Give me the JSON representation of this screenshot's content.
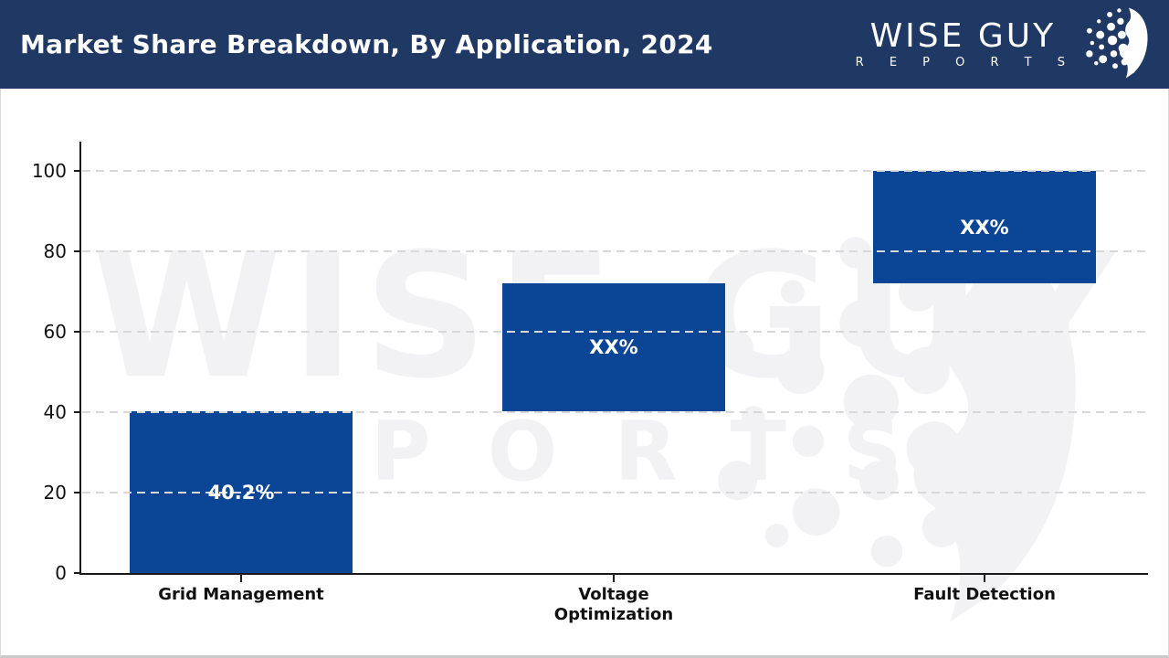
{
  "header": {
    "title": "Market Share Breakdown, By Application, 2024",
    "logo": {
      "line1": "WISE GUY",
      "line2": "R E P O R T S"
    }
  },
  "watermark": {
    "line1": "WISE GUY",
    "line2": "REPORTS"
  },
  "chart_data": {
    "type": "bar",
    "subtype": "floating-segment-waterfall",
    "title": "Market Share Breakdown, By Application, 2024",
    "xlabel": "",
    "ylabel": "",
    "ylim": [
      0,
      107
    ],
    "yticks": [
      0,
      20,
      40,
      60,
      80,
      100
    ],
    "grid": true,
    "legend": false,
    "categories": [
      {
        "label_lines": [
          "Grid Management"
        ]
      },
      {
        "label_lines": [
          "Voltage",
          "Optimization"
        ]
      },
      {
        "label_lines": [
          "Fault Detection"
        ]
      }
    ],
    "segments": [
      {
        "category": "Grid Management",
        "start": 0,
        "end": 40.2,
        "label": "40.2%"
      },
      {
        "category": "Voltage Optimization",
        "start": 40.2,
        "end": 72,
        "label": "XX%"
      },
      {
        "category": "Fault Detection",
        "start": 72,
        "end": 100,
        "label": "XX%"
      }
    ]
  },
  "colors": {
    "header_bg": "#1f3864",
    "header_text": "#ffffff",
    "bar": "#0a4596",
    "bar_label": "#ffffff",
    "gridline": "#d8d8d8",
    "axis": "#1a1a1a",
    "tick_label": "#111111",
    "watermark": "#f2f2f4",
    "panel_border": "#c9c9c9"
  }
}
